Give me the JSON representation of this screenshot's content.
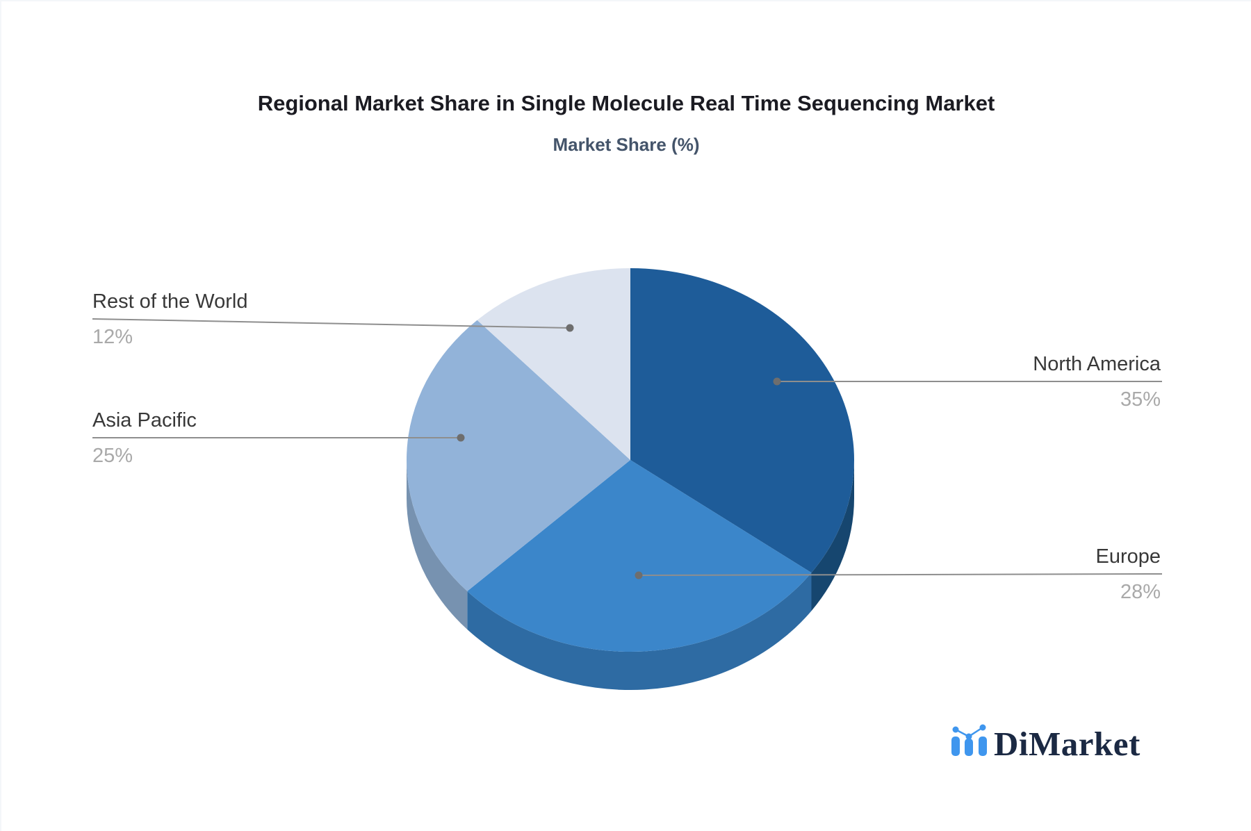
{
  "title": "Regional Market Share in Single Molecule Real Time Sequencing Market",
  "subtitle": "Market Share (%)",
  "logo": {
    "text": "DiMarket",
    "icon": "bar-line-chart-icon"
  },
  "chart_data": {
    "type": "pie",
    "style": "3d",
    "title": "Regional Market Share in Single Molecule Real Time Sequencing Market",
    "subtitle": "Market Share (%)",
    "labels": [
      "North America",
      "Europe",
      "Asia Pacific",
      "Rest of the World"
    ],
    "values": [
      35,
      28,
      25,
      12
    ],
    "display_percents": [
      "35%",
      "28%",
      "25%",
      "12%"
    ],
    "unit": "%",
    "start_angle": "12-oclock",
    "direction": "clockwise",
    "legend_position": "callout-labels",
    "colors": [
      "#1E5C99",
      "#3B86CA",
      "#92B3D9",
      "#DCE3EF"
    ],
    "side_colors": [
      "#16466F",
      "#2E6BA3",
      "#7792B0",
      "#B9C5D8"
    ],
    "callout_line_color": "#8e8e8e",
    "callout_dot_color": "#6e6e6e",
    "label_color": "#383838",
    "percent_color": "#a9a9a9"
  }
}
